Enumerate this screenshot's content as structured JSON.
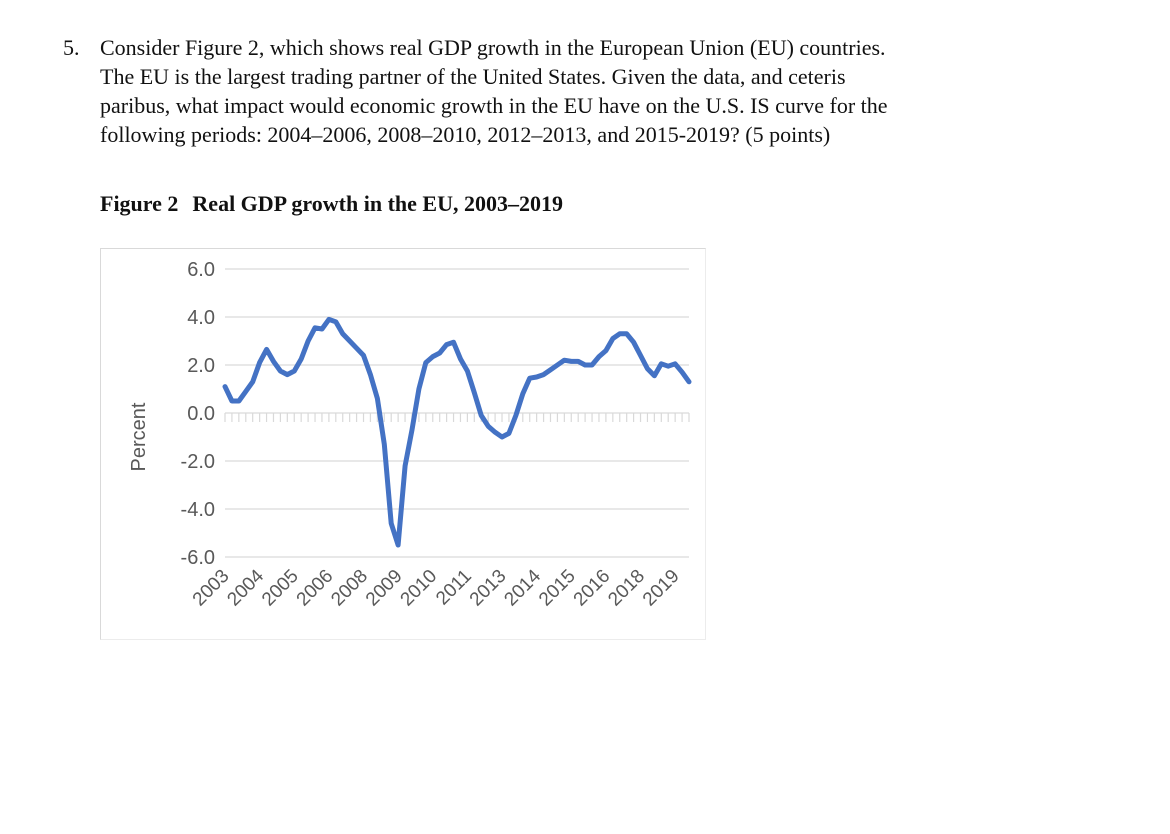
{
  "question": {
    "number": "5.",
    "lines": [
      "Consider Figure 2, which shows real GDP growth in the European Union (EU) countries.",
      "The EU is the largest trading partner of the United States. Given the data, and ceteris",
      "paribus, what impact would economic growth in the EU have on the U.S. IS curve for the",
      "following periods: 2004–2006, 2008–2010, 2012–2013, and 2015-2019? (5 points)"
    ]
  },
  "figure": {
    "label": "Figure 2",
    "title": "Real GDP growth in the EU, 2003–2019"
  },
  "chart_data": {
    "type": "line",
    "title": "Real GDP growth in the EU, 2003–2019",
    "xlabel": "",
    "ylabel": "Percent",
    "ylim": [
      -6.0,
      6.0
    ],
    "grid": true,
    "legend": "none",
    "line_color": "#4472C4",
    "grid_color": "#d9d9d9",
    "axis_text_color": "#595959",
    "x_unit": "quarter",
    "x_range": [
      "2003 Q1",
      "2019 Q4"
    ],
    "y_ticks": [
      "6.0",
      "4.0",
      "2.0",
      "0.0",
      "-2.0",
      "-4.0",
      "-6.0"
    ],
    "x_ticks": [
      {
        "q": 0,
        "label": "2003"
      },
      {
        "q": 5,
        "label": "2004"
      },
      {
        "q": 10,
        "label": "2005"
      },
      {
        "q": 15,
        "label": "2006"
      },
      {
        "q": 20,
        "label": "2008"
      },
      {
        "q": 25,
        "label": "2009"
      },
      {
        "q": 30,
        "label": "2010"
      },
      {
        "q": 35,
        "label": "2011"
      },
      {
        "q": 40,
        "label": "2013"
      },
      {
        "q": 45,
        "label": "2014"
      },
      {
        "q": 50,
        "label": "2015"
      },
      {
        "q": 55,
        "label": "2016"
      },
      {
        "q": 60,
        "label": "2018"
      },
      {
        "q": 65,
        "label": "2019"
      }
    ],
    "series": [
      {
        "name": "EU real GDP growth (percent, quarterly 2003Q1–2019Q4)",
        "values": [
          1.1,
          0.5,
          0.5,
          0.9,
          1.3,
          2.1,
          2.65,
          2.15,
          1.75,
          1.6,
          1.75,
          2.25,
          3.0,
          3.55,
          3.5,
          3.9,
          3.8,
          3.3,
          3.0,
          2.7,
          2.4,
          1.6,
          0.6,
          -1.3,
          -4.6,
          -5.5,
          -2.2,
          -0.7,
          1.0,
          2.1,
          2.35,
          2.5,
          2.85,
          2.95,
          2.25,
          1.75,
          0.85,
          -0.1,
          -0.55,
          -0.8,
          -1.0,
          -0.85,
          -0.1,
          0.8,
          1.45,
          1.5,
          1.6,
          1.8,
          2.0,
          2.2,
          2.15,
          2.15,
          2.0,
          2.0,
          2.35,
          2.6,
          3.1,
          3.3,
          3.3,
          2.95,
          2.4,
          1.85,
          1.55,
          2.05,
          1.95,
          2.05,
          1.7,
          1.3
        ]
      }
    ]
  }
}
